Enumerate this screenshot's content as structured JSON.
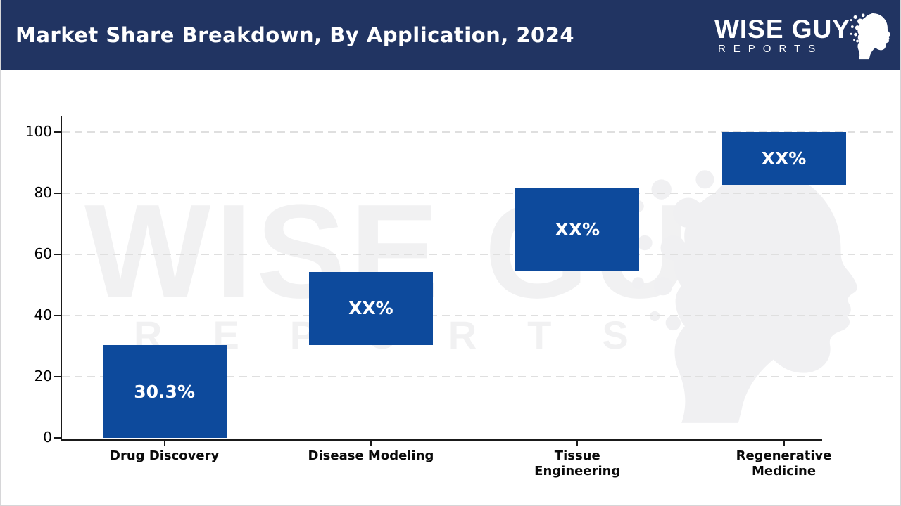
{
  "header": {
    "title": "Market Share Breakdown, By Application, 2024",
    "bg_color": "#213462",
    "logo": {
      "line1": "WISE GUY",
      "line2": "REPORTS"
    }
  },
  "watermark": {
    "line1": "WISE GUY",
    "line2": "REPORTS"
  },
  "chart_data": {
    "type": "bar",
    "subtype": "waterfall-floating-bars",
    "title": "Market Share Breakdown, By Application, 2024",
    "categories": [
      "Drug Discovery",
      "Disease Modeling",
      "Tissue Engineering",
      "Regenerative Medicine"
    ],
    "series": [
      {
        "name": "Market Share",
        "segments": [
          {
            "category": "Drug Discovery",
            "start": 0,
            "end": 30.3,
            "label": "30.3%"
          },
          {
            "category": "Disease Modeling",
            "start": 30.3,
            "end": 54.3,
            "label": "XX%"
          },
          {
            "category": "Tissue Engineering",
            "start": 54.5,
            "end": 81.9,
            "label": "XX%"
          },
          {
            "category": "Regenerative Medicine",
            "start": 82.7,
            "end": 100,
            "label": "XX%"
          }
        ]
      }
    ],
    "xlabel": "",
    "ylabel": "",
    "ylim": [
      0,
      100
    ],
    "yticks": [
      0,
      20,
      40,
      60,
      80,
      100
    ],
    "grid": true,
    "gridline_style": "dashed",
    "legend": "none",
    "bar_color": "#0d4a9c",
    "bar_label_color": "#ffffff",
    "axis_color": "#1a1a1a",
    "grid_color": "#dfdfdf"
  }
}
